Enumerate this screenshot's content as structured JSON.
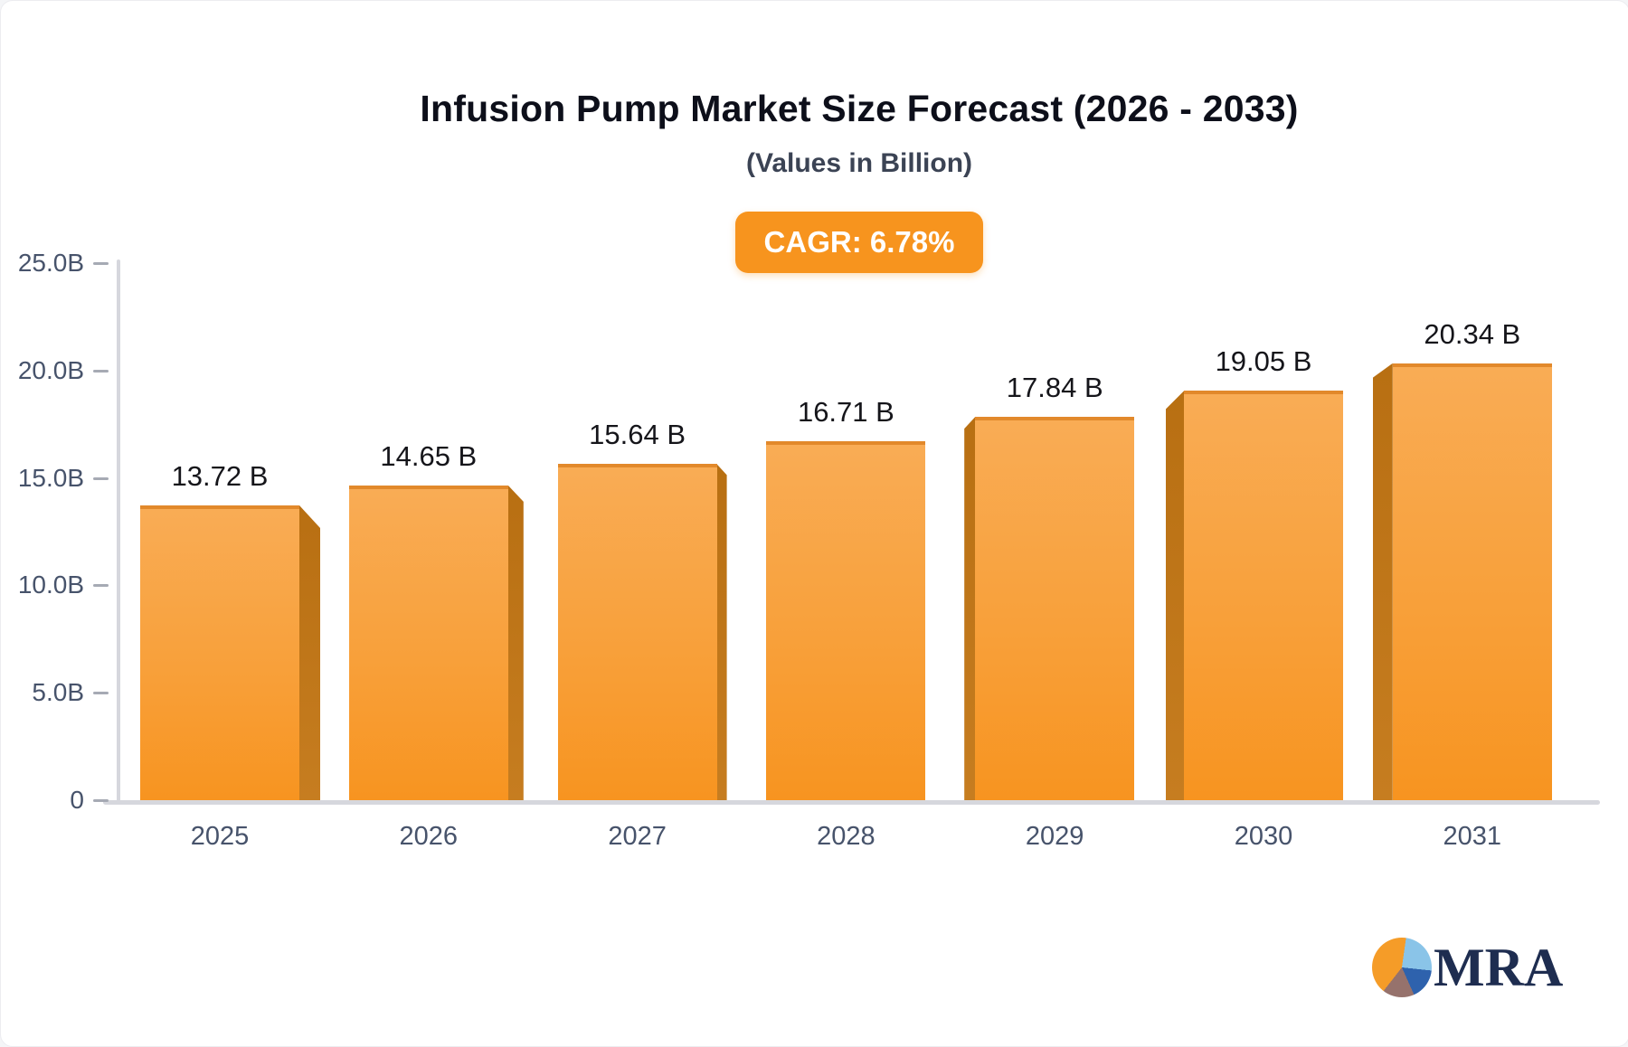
{
  "page": {
    "background": "#ffffff"
  },
  "header": {
    "title": "Infusion Pump Market Size Forecast (2026 - 2033)",
    "subtitle": "(Values in Billion)",
    "cagr_label": "CAGR: 6.78%"
  },
  "chart_data": {
    "type": "bar",
    "title": "Infusion Pump Market Size Forecast (2026 - 2033)",
    "subtitle": "(Values in Billion)",
    "cagr": "6.78%",
    "unit": "Billion USD",
    "categories": [
      "2025",
      "2026",
      "2027",
      "2028",
      "2029",
      "2030",
      "2031"
    ],
    "values": [
      13.72,
      14.65,
      15.64,
      16.71,
      17.84,
      19.05,
      20.34
    ],
    "bar_labels": [
      "13.72 B",
      "14.65 B",
      "15.64 B",
      "16.71 B",
      "17.84 B",
      "19.05 B",
      "20.34 B"
    ],
    "ylim": [
      0,
      25
    ],
    "yticks": [
      {
        "value": 0,
        "label": "0"
      },
      {
        "value": 5,
        "label": "5.0B"
      },
      {
        "value": 10,
        "label": "10.0B"
      },
      {
        "value": 15,
        "label": "15.0B"
      },
      {
        "value": 20,
        "label": "20.0B"
      },
      {
        "value": 25,
        "label": "25.0B"
      }
    ],
    "xlabel": "",
    "ylabel": "",
    "grid": false,
    "legend": "none",
    "bar_style": "3d-perspective",
    "colors": {
      "bar_face_top": "#f9ac55",
      "bar_face_mid": "#f8a03a",
      "bar_face_bottom": "#f79420",
      "bar_top_edge": "#e2892b",
      "bar_side_dark": "#b86f12",
      "bar_side_light": "#c67d20",
      "badge_bg": "#f7941e",
      "axis_text": "#47536b",
      "axis_line": "#d6d7dd",
      "value_label": "#15151a"
    }
  },
  "logo": {
    "text": "MRA",
    "icon": "pie-chart-icon",
    "colors": {
      "navy": "#1e2d50",
      "orange": "#f59c28",
      "light_blue": "#8ac4e8",
      "blue": "#2e62ad",
      "brown": "#96726c"
    }
  }
}
